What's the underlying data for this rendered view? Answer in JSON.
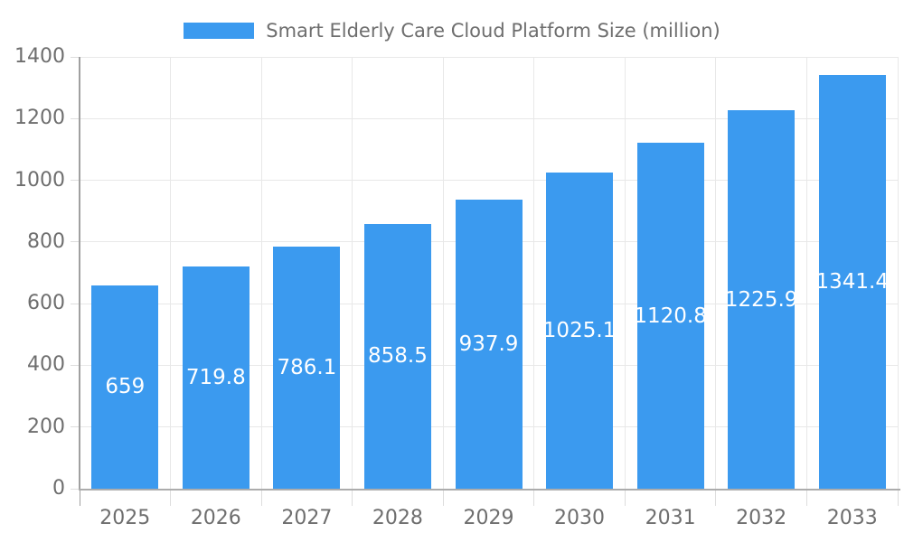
{
  "chart_data": {
    "type": "bar",
    "title": "Smart Elderly Care Cloud Platform Size (million)",
    "legend_position": "top-center",
    "categories": [
      "2025",
      "2026",
      "2027",
      "2028",
      "2029",
      "2030",
      "2031",
      "2032",
      "2033"
    ],
    "series": [
      {
        "name": "Smart Elderly Care Cloud Platform Size (million)",
        "values": [
          659,
          719.8,
          786.1,
          858.5,
          937.9,
          1025.1,
          1120.8,
          1225.9,
          1341.4
        ],
        "labels": [
          "659",
          "719.8",
          "786.1",
          "858.5",
          "937.9",
          "1025.1",
          "1120.8",
          "1225.9",
          "1341.4"
        ]
      }
    ],
    "xlabel": "",
    "ylabel": "",
    "ylim": [
      0,
      1400
    ],
    "yticks": [
      0,
      200,
      400,
      600,
      800,
      1000,
      1200,
      1400
    ],
    "grid": true,
    "value_label_position": "inside-center",
    "colors": {
      "bar": "#3B9AEF",
      "value_label": "#ffffff",
      "axis_text": "#6E6E6E",
      "legend_text": "#6E6E6E",
      "gridline": "#E8E8E8",
      "tick_mark": "#DDDDDD",
      "y_axis_line": "#A0A0A0",
      "x_axis_line": "#ACACAC",
      "background": "#FFFFFF"
    }
  }
}
